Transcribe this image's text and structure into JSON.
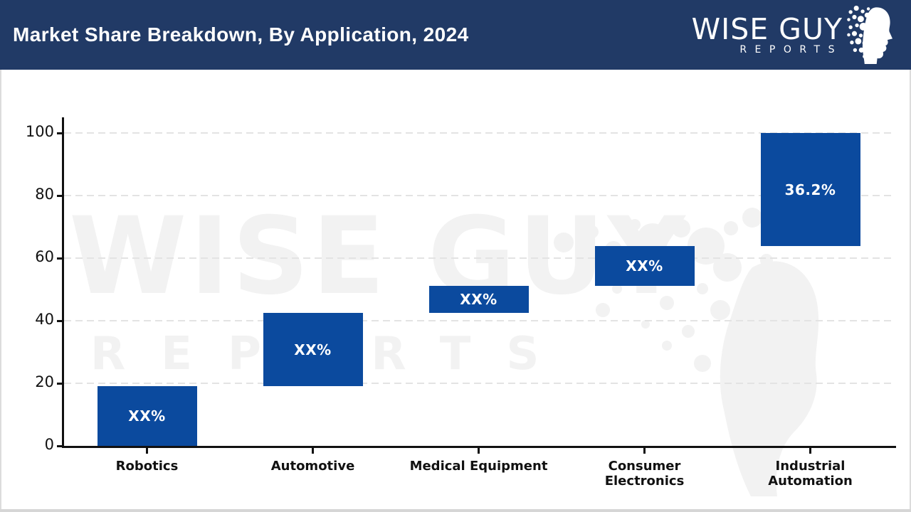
{
  "header": {
    "title": "Market Share Breakdown, By Application, 2024",
    "logo": {
      "line1": "WISE GUY",
      "line2": "REPORTS"
    }
  },
  "watermark": {
    "line1": "WISE GUY",
    "line2": "REPORTS"
  },
  "colors": {
    "header_bg": "#213a66",
    "bar": "#0b4a9e",
    "bar_label": "#ffffff",
    "axis": "#111111",
    "tick_label": "#111111",
    "grid": "#e3e3e3",
    "watermark": "#f2f2f2",
    "footer_strip": "#d6d6d6"
  },
  "chart_data": {
    "type": "bar",
    "subtype": "waterfall",
    "title": "Market Share Breakdown, By Application, 2024",
    "xlabel": "",
    "ylabel": "",
    "ylim": [
      0,
      100
    ],
    "yticks": [
      0,
      20,
      40,
      60,
      80,
      100
    ],
    "grid": true,
    "legend": false,
    "categories": [
      "Robotics",
      "Automotive",
      "Medical Equipment",
      "Consumer\nElectronics",
      "Industrial\nAutomation"
    ],
    "segments": [
      {
        "category": "Robotics",
        "start": 0,
        "end": 19,
        "label": "XX%"
      },
      {
        "category": "Automotive",
        "start": 19,
        "end": 42.4,
        "label": "XX%"
      },
      {
        "category": "Medical Equipment",
        "start": 42.4,
        "end": 51.2,
        "label": "XX%"
      },
      {
        "category": "Consumer\nElectronics",
        "start": 51.2,
        "end": 63.8,
        "label": "XX%"
      },
      {
        "category": "Industrial\nAutomation",
        "start": 63.8,
        "end": 100,
        "label": "36.2%"
      }
    ]
  }
}
